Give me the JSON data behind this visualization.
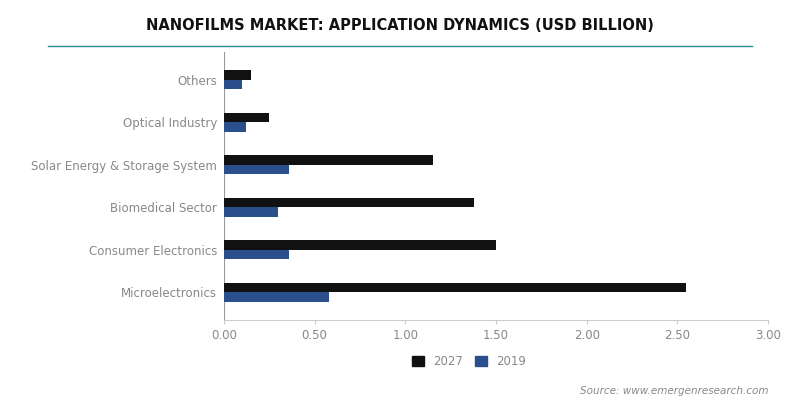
{
  "title": "NANOFILMS MARKET: APPLICATION DYNAMICS (USD BILLION)",
  "categories": [
    "Microelectronics",
    "Consumer Electronics",
    "Biomedical Sector",
    "Solar Energy & Storage System",
    "Optical Industry",
    "Others"
  ],
  "values_2027": [
    2.55,
    1.5,
    1.38,
    1.15,
    0.25,
    0.15
  ],
  "values_2019": [
    0.58,
    0.36,
    0.3,
    0.36,
    0.12,
    0.1
  ],
  "color_2027": "#111111",
  "color_2019": "#2b4f8c",
  "xlim": [
    0,
    3.0
  ],
  "xticks": [
    0.0,
    0.5,
    1.0,
    1.5,
    2.0,
    2.5,
    3.0
  ],
  "xtick_labels": [
    "0.00",
    "0.50",
    "1.00",
    "1.50",
    "2.00",
    "2.50",
    "3.00"
  ],
  "title_fontsize": 10.5,
  "label_fontsize": 8.5,
  "tick_fontsize": 8.5,
  "source_text": "Source: www.emergenresearch.com",
  "legend_labels": [
    "2027",
    "2019"
  ],
  "bar_height": 0.22,
  "title_line_color": "#2e8b8b",
  "background_color": "#ffffff",
  "label_color": "#888888"
}
